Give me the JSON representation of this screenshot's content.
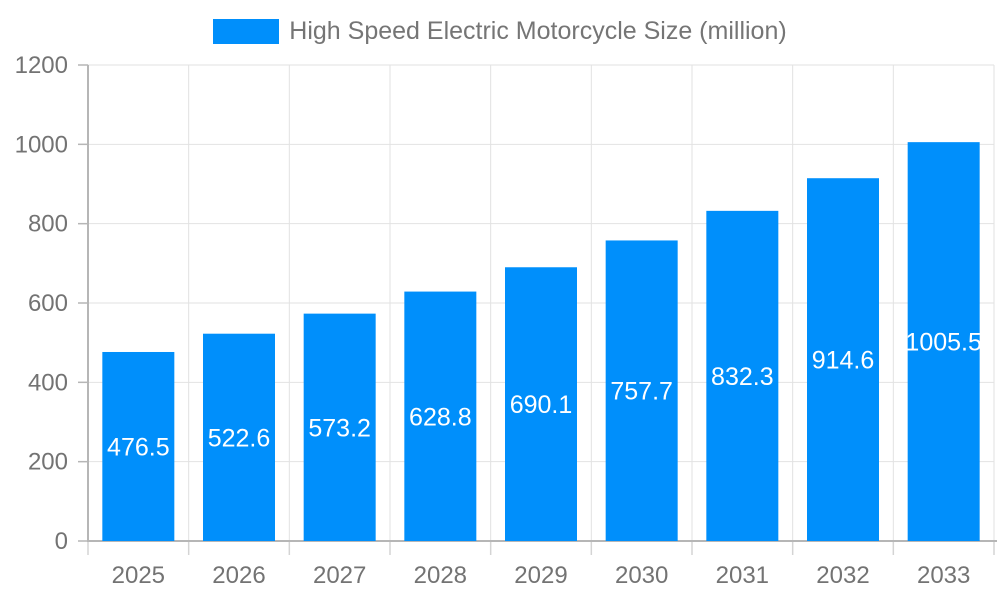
{
  "legend": {
    "label": "High Speed Electric Motorcycle Size (million)"
  },
  "chart_data": {
    "type": "bar",
    "title": "High Speed Electric Motorcycle Size (million)",
    "series_name": "High Speed Electric Motorcycle Size (million)",
    "categories": [
      "2025",
      "2026",
      "2027",
      "2028",
      "2029",
      "2030",
      "2031",
      "2032",
      "2033"
    ],
    "values": [
      476.5,
      522.6,
      573.2,
      628.8,
      690.1,
      757.7,
      832.3,
      914.6,
      1005.5
    ],
    "value_labels": [
      "476.5",
      "522.6",
      "573.2",
      "628.8",
      "690.1",
      "757.7",
      "832.3",
      "914.6",
      "1005.5"
    ],
    "xlabel": "",
    "ylabel": "",
    "ylim": [
      0,
      1200
    ],
    "yticks": [
      0,
      200,
      400,
      600,
      800,
      1000,
      1200
    ],
    "grid": true,
    "legend_position": "top",
    "bar_color": "#008ffb",
    "grid_color": "#e2e2e2",
    "axis_color": "#b6b6b6",
    "tick_color": "#d4d4d4",
    "axis_label_color": "#737373",
    "value_label_color": "#ffffff"
  }
}
